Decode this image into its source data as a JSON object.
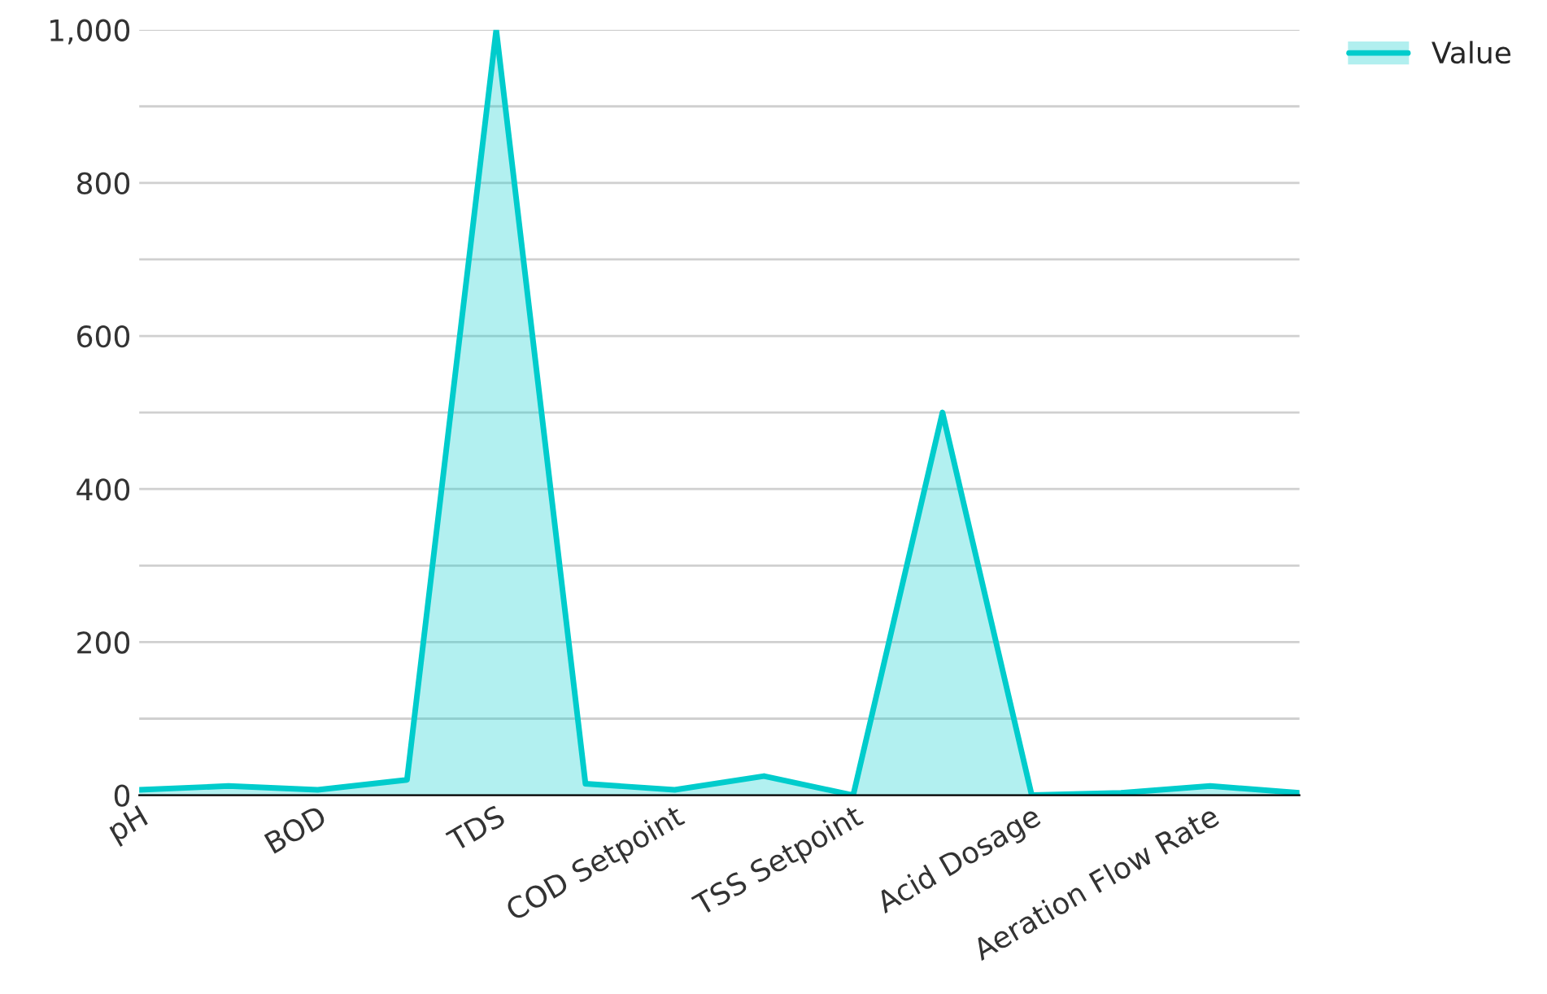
{
  "chart_data": {
    "type": "area",
    "categories": [
      "pH",
      null,
      "BOD",
      null,
      "TDS",
      null,
      "COD Setpoint",
      null,
      "TSS Setpoint",
      null,
      "Acid Dosage",
      null,
      "Aeration Flow Rate",
      null
    ],
    "series": [
      {
        "name": "Value",
        "color": "#00cccc",
        "values": [
          7,
          12,
          7,
          20,
          1000,
          15,
          7,
          25,
          0,
          500,
          0,
          3,
          12,
          3
        ]
      }
    ],
    "ylim": [
      0,
      1000
    ],
    "yticks": [
      0,
      {
        "value": 100,
        "label": null
      },
      200,
      {
        "value": 300,
        "label": null
      },
      400,
      {
        "value": 500,
        "label": null
      },
      600,
      {
        "value": 700,
        "label": null
      },
      800,
      {
        "value": 900,
        "label": null
      },
      {
        "value": 1000,
        "label": "1,000"
      }
    ],
    "grid": "y",
    "legend": "top right"
  }
}
